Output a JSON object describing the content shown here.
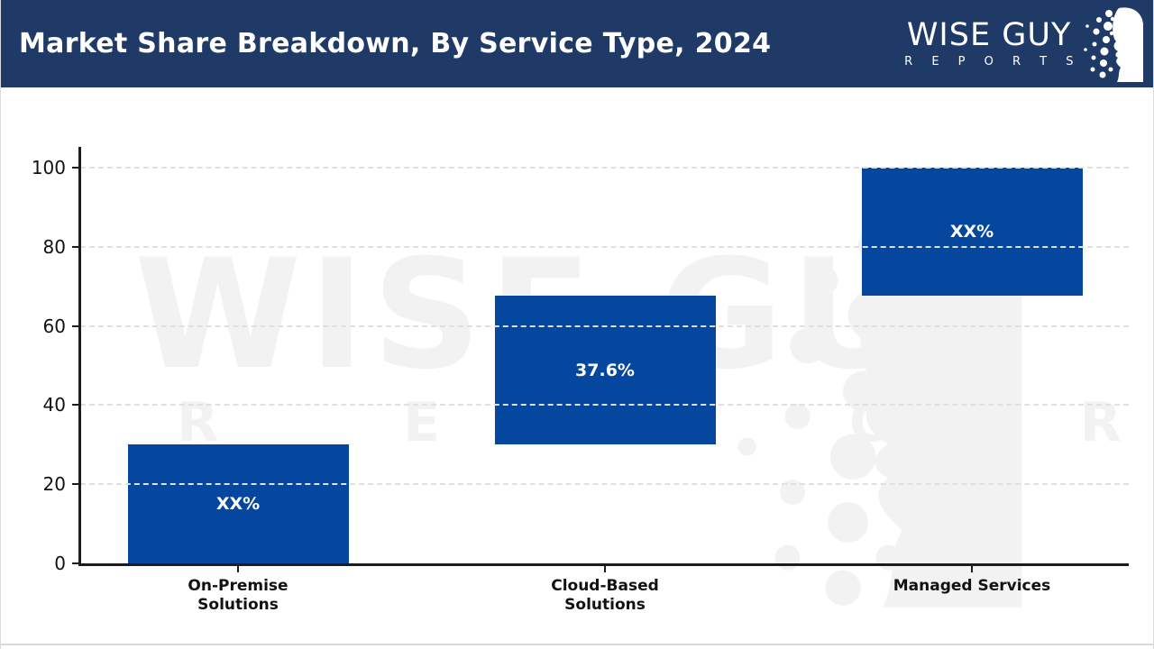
{
  "header": {
    "title": "Market Share Breakdown, By Service Type, 2024",
    "bg_color": "#203a68",
    "brand_line1": "WISE GUY",
    "brand_line2": "R E P O R T S"
  },
  "watermark": {
    "line1": "WISE GUY",
    "line2": "R E P O R T S"
  },
  "chart_data": {
    "type": "bar",
    "variant": "floating-waterfall",
    "title": "Market Share Breakdown, By Service Type, 2024",
    "categories": [
      "On-Premise Solutions",
      "Cloud-Based Solutions",
      "Managed Services"
    ],
    "category_label_lines": [
      "On-Premise\nSolutions",
      "Cloud-Based\nSolutions",
      "Managed Services"
    ],
    "bar_ranges": [
      [
        0,
        30
      ],
      [
        30,
        67.6
      ],
      [
        67.6,
        100
      ]
    ],
    "segment_values": [
      30,
      37.6,
      32.4
    ],
    "bar_labels": [
      "XX%",
      "37.6%",
      "XX%"
    ],
    "yticks": [
      0,
      20,
      40,
      60,
      80,
      100
    ],
    "ylim": [
      0,
      105
    ],
    "xlabel": "",
    "ylabel": "",
    "grid": "dashed-horizontal",
    "legend": false,
    "bar_color": "#05479e",
    "bar_label_color": "#ffffff",
    "axis_color": "#1c1c1c",
    "grid_color": "#e0e0e0"
  }
}
